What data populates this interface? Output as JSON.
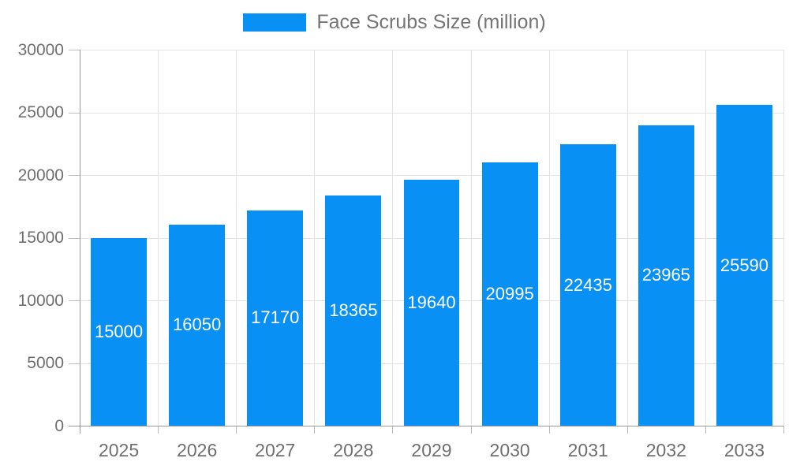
{
  "chart_data": {
    "type": "bar",
    "title": "Face Scrubs Size (million)",
    "legend": [
      {
        "label": "Face Scrubs Size (million)",
        "color": "#0990f5"
      }
    ],
    "legend_position": "top",
    "categories": [
      "2025",
      "2026",
      "2027",
      "2028",
      "2029",
      "2030",
      "2031",
      "2032",
      "2033"
    ],
    "series": [
      {
        "name": "Face Scrubs Size (million)",
        "values": [
          15000,
          16050,
          17170,
          18365,
          19640,
          20995,
          22435,
          23965,
          25590
        ]
      }
    ],
    "value_labels": [
      "15000",
      "16050",
      "17170",
      "18365",
      "19640",
      "20995",
      "22435",
      "23965",
      "25590"
    ],
    "xlabel": "",
    "ylabel": "",
    "ylim": [
      0,
      30000
    ],
    "yticks": [
      0,
      5000,
      10000,
      15000,
      20000,
      25000,
      30000
    ],
    "grid": true,
    "colors": {
      "bar": "#0990f5",
      "value_label": "#ffffff",
      "axis": "#999999",
      "tick": "#bdbdbd",
      "grid": "#e2e2e2",
      "text": "#6f6f6f"
    }
  }
}
